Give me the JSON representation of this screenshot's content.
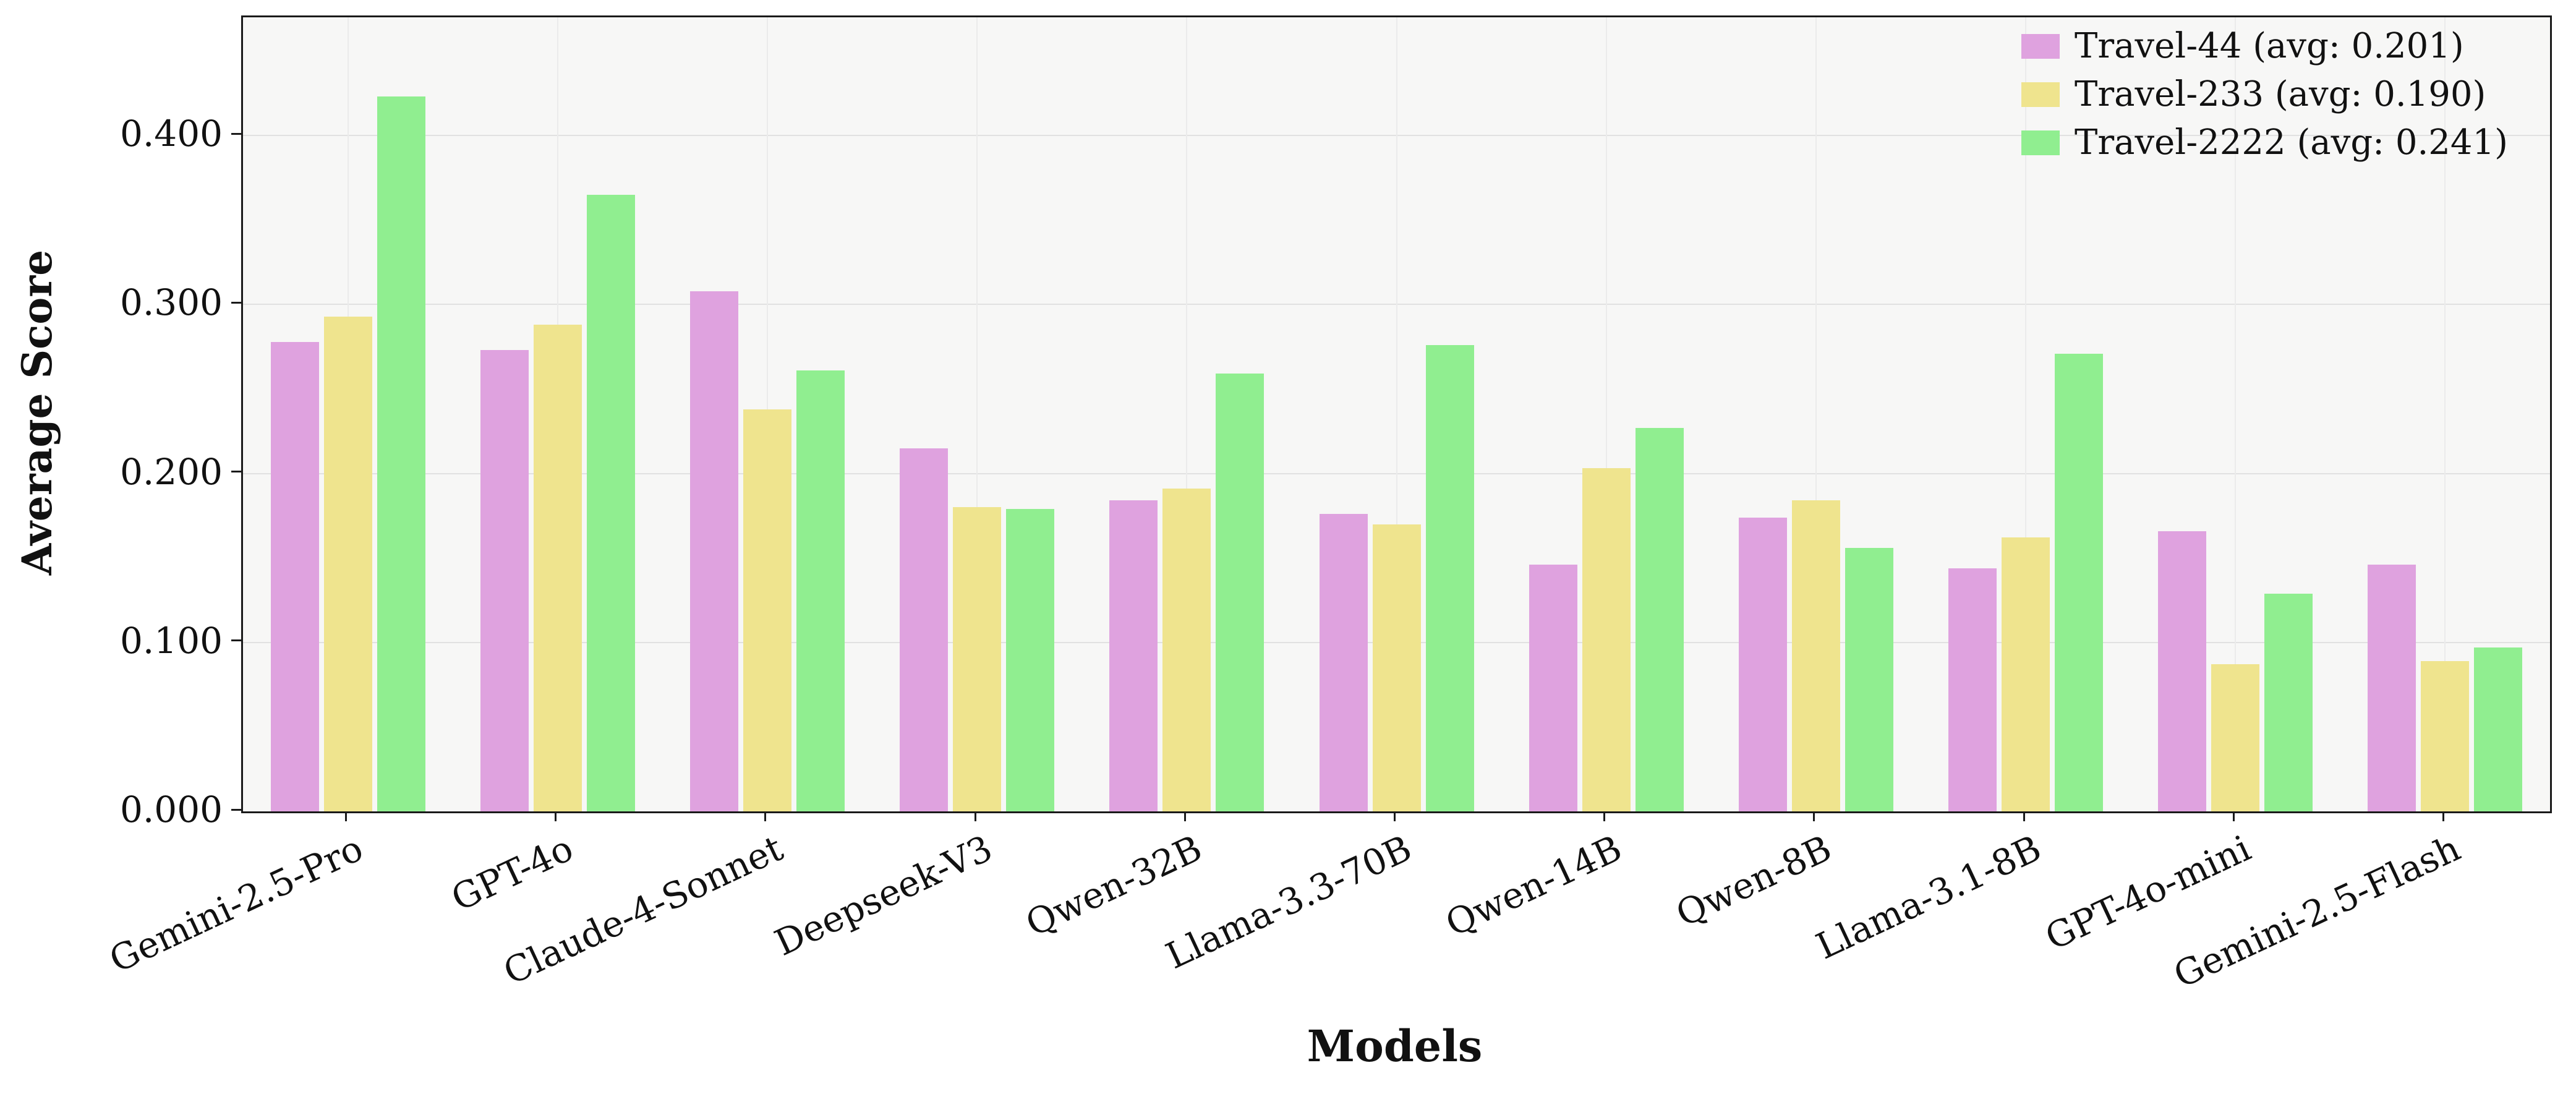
{
  "chart_data": {
    "type": "bar",
    "title": "",
    "xlabel": "Models",
    "ylabel": "Average Score",
    "ylim": [
      0,
      0.47
    ],
    "yticks": [
      "0.000",
      "0.100",
      "0.200",
      "0.300",
      "0.400"
    ],
    "ytick_values": [
      0.0,
      0.1,
      0.2,
      0.3,
      0.4
    ],
    "grid": true,
    "legend_position": "upper right",
    "categories": [
      "Gemini-2.5-Pro",
      "GPT-4o",
      "Claude-4-Sonnet",
      "Deepseek-V3",
      "Qwen-32B",
      "Llama-3.3-70B",
      "Qwen-14B",
      "Qwen-8B",
      "Llama-3.1-8B",
      "GPT-4o-mini",
      "Gemini-2.5-Flash"
    ],
    "series": [
      {
        "name": "Travel-44 (avg: 0.201)",
        "color": "#dfa2df",
        "values": [
          0.278,
          0.273,
          0.308,
          0.215,
          0.184,
          0.176,
          0.146,
          0.174,
          0.144,
          0.166,
          0.146
        ]
      },
      {
        "name": "Travel-233 (avg: 0.190)",
        "color": "#efe48e",
        "values": [
          0.293,
          0.288,
          0.238,
          0.18,
          0.191,
          0.17,
          0.203,
          0.184,
          0.162,
          0.087,
          0.089
        ]
      },
      {
        "name": "Travel-2222 (avg: 0.241)",
        "color": "#90ee90",
        "values": [
          0.423,
          0.365,
          0.261,
          0.179,
          0.259,
          0.276,
          0.227,
          0.156,
          0.271,
          0.129,
          0.097
        ]
      }
    ]
  }
}
